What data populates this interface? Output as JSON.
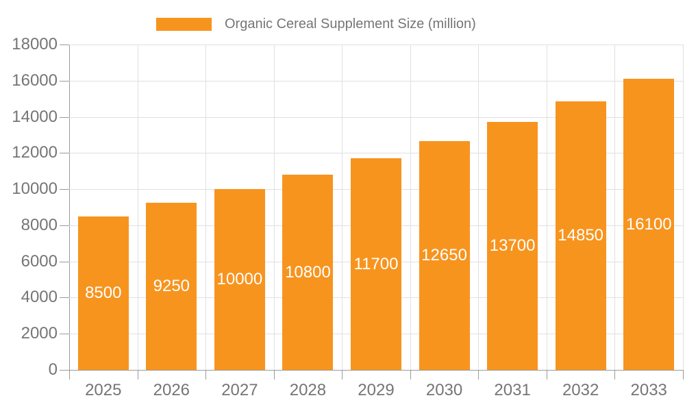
{
  "legend": {
    "label": "Organic Cereal Supplement Size (million)"
  },
  "chart_data": {
    "type": "bar",
    "title": "",
    "legend_entries": [
      "Organic Cereal Supplement Size (million)"
    ],
    "categories": [
      "2025",
      "2026",
      "2027",
      "2028",
      "2029",
      "2030",
      "2031",
      "2032",
      "2033"
    ],
    "values": [
      8500,
      9250,
      10000,
      10800,
      11700,
      12650,
      13700,
      14850,
      16100
    ],
    "xlabel": "",
    "ylabel": "",
    "ylim": [
      0,
      18000
    ],
    "ytick_interval": 2000,
    "ytick_labels": [
      "0",
      "2000",
      "4000",
      "6000",
      "8000",
      "10000",
      "12000",
      "14000",
      "16000",
      "18000"
    ],
    "grid": "horizontal-and-vertical",
    "legend_position": "top-center",
    "value_labels_position": "inside-center"
  },
  "colors": {
    "bar": "#f7941e",
    "bar_value_label": "#ffffff",
    "axis_line": "#999999",
    "gridline": "#e0e0e0",
    "axis_text": "#757575",
    "legend_text": "#757575",
    "background": "#ffffff"
  }
}
